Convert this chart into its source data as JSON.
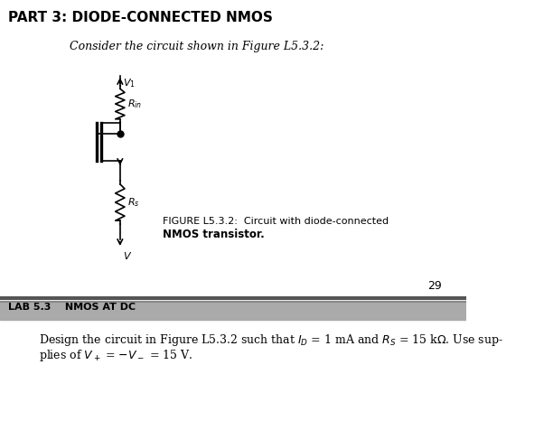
{
  "title": "PART 3: DIODE-CONNECTED NMOS",
  "subtitle": "Consider the circuit shown in Figure L5.3.2:",
  "figure_caption_line1": "FIGURE L5.3.2:  Circuit with diode-connected",
  "figure_caption_line2": "NMOS transistor.",
  "page_number": "29",
  "footer_left": "LAB 5.3    NMOS AT DC",
  "footer_text": "Design the circuit in Figure L5.3.2 such that $I_D$ = 1 mA and $R_S$ = 15 kΩ. Use sup-\nplies of $V_+$ = −$V_-$ = 15 V.",
  "label_V1": "$V_1$",
  "label_Rin": "$R_{in}$",
  "label_Rs": "$R_s$",
  "label_V": "$V$",
  "bg_color": "#ffffff",
  "line_color": "#000000",
  "separator_color": "#888888",
  "footer_bg": "#d0d0d0"
}
